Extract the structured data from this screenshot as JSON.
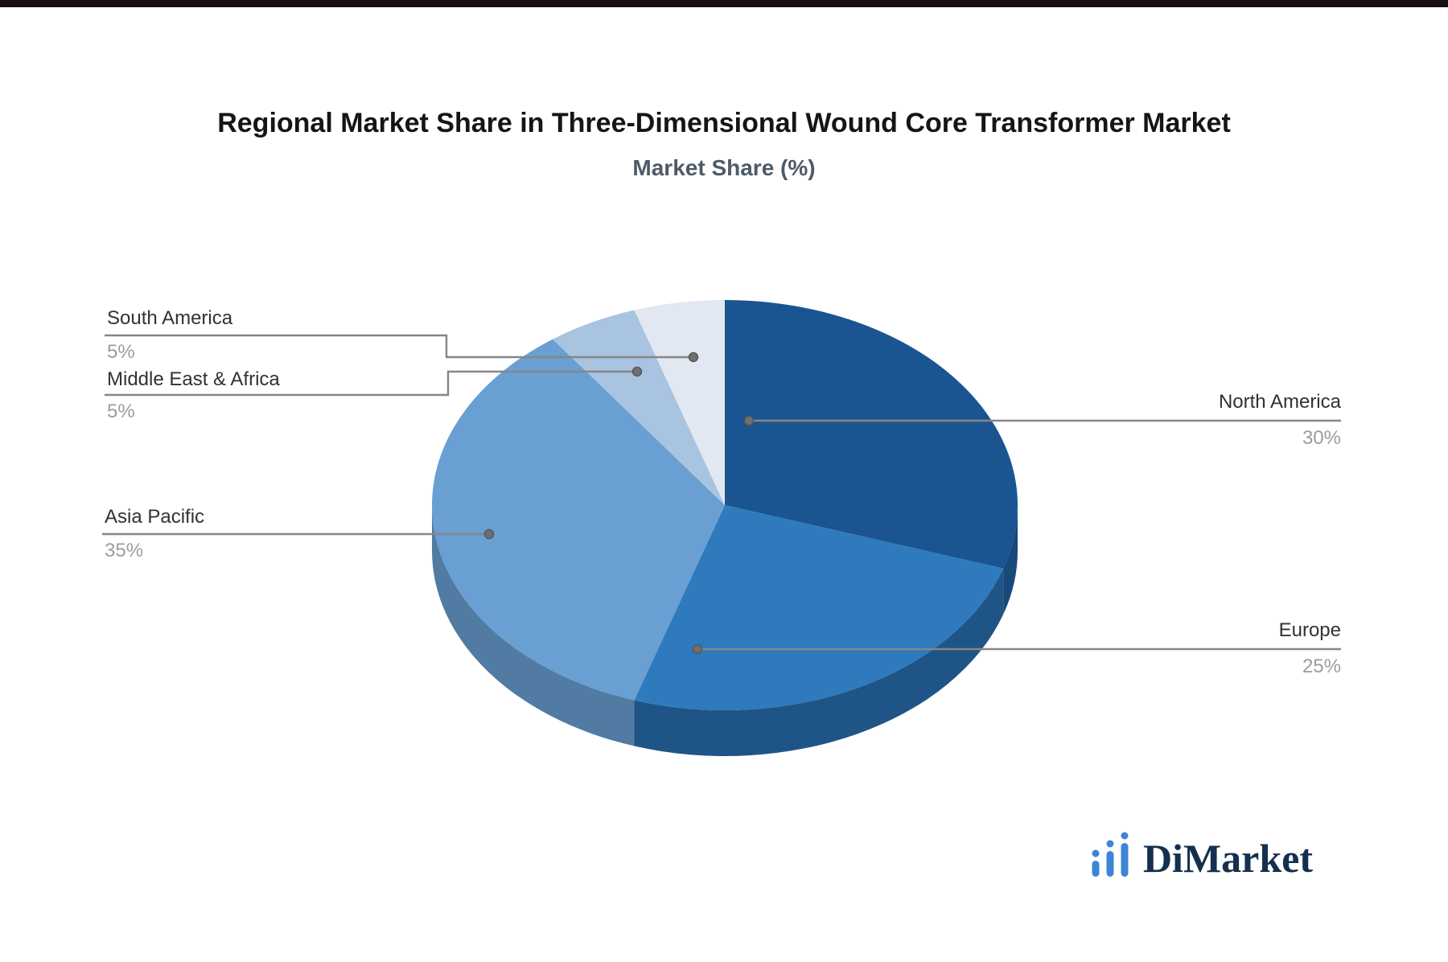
{
  "page": {
    "title": "Regional Market Share in Three-Dimensional Wound Core Transformer Market",
    "subtitle": "Market Share (%)"
  },
  "brand": {
    "name": "DiMarket",
    "icon": "bar-chart-logo-icon"
  },
  "chart_data": {
    "type": "pie",
    "style": "3d",
    "title": "Regional Market Share in Three-Dimensional Wound Core Transformer Market",
    "unit": "%",
    "start_angle_deg": 0,
    "direction": "clockwise",
    "legend_position": "none",
    "labels_connected_by": "leader-lines",
    "categories": [
      "North America",
      "Europe",
      "Asia Pacific",
      "Middle East & Africa",
      "South America"
    ],
    "values": [
      30,
      25,
      35,
      5,
      5
    ],
    "value_labels": [
      "30%",
      "25%",
      "35%",
      "5%",
      "5%"
    ],
    "slice_colors": [
      "#1A5591",
      "#2E7ABD",
      "#699FD2",
      "#A9C4E1",
      "#E2E8F1"
    ],
    "slice_depth_colors": [
      "#17497B",
      "#1F5586",
      "#527BA3",
      "#8FADCB",
      "#C2CEDD"
    ]
  },
  "colors": {
    "background": "#FFFFFF",
    "top_strip": "#191111",
    "title_text": "#151515",
    "subtitle_text": "#4E5A68",
    "label_text": "#323232",
    "value_text": "#9C9C9C",
    "leader_line": "#868686",
    "leader_dot": "#6F6F6F",
    "brand_text": "#14304E",
    "brand_icon": "#3E84D6"
  }
}
